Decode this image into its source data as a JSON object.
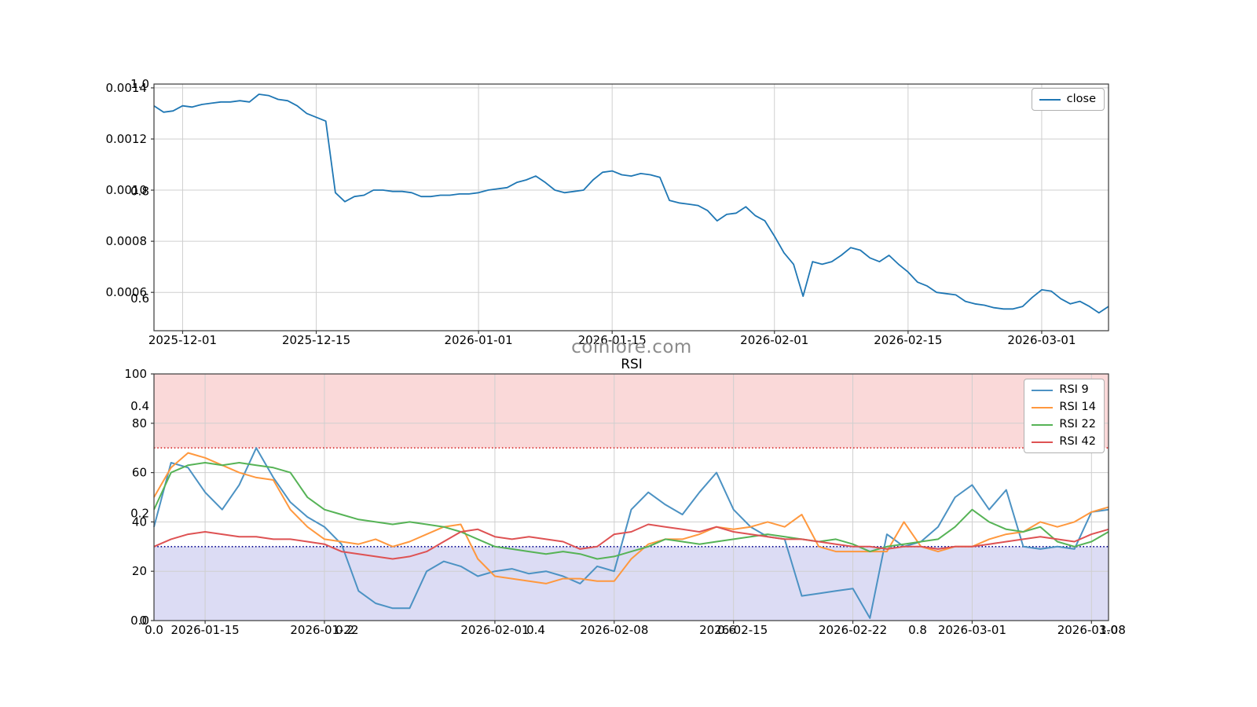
{
  "watermark": "coinlore.com",
  "phantom_axis": {
    "x_tick_labels": [
      "0.0",
      "0.2",
      "0.4",
      "0.6",
      "0.8",
      "1.0"
    ],
    "y_tick_labels": [
      "0.0",
      "0.2",
      "0.4",
      "0.6",
      "0.8",
      "1.0"
    ]
  },
  "chart_data": [
    {
      "type": "line",
      "title": "",
      "x_start": "2025-11-28",
      "x_unit": "day",
      "x_tick_labels": [
        "2025-12-01",
        "2025-12-15",
        "2026-01-01",
        "2026-01-15",
        "2026-02-01",
        "2026-02-15",
        "2026-03-01"
      ],
      "x_tick_indices": [
        3,
        17,
        34,
        48,
        65,
        79,
        93
      ],
      "ylim": [
        0.00045,
        0.001415
      ],
      "y_ticks": [
        0.0006,
        0.0008,
        0.001,
        0.0012,
        0.0014
      ],
      "y_tick_labels": [
        "0.0006",
        "0.0008",
        "0.0010",
        "0.0012",
        "0.0014"
      ],
      "grid": true,
      "legend_position": "upper right",
      "series": [
        {
          "name": "close",
          "color": "#1f77b4",
          "values": [
            0.00133,
            0.001305,
            0.00131,
            0.00133,
            0.001325,
            0.001335,
            0.00134,
            0.001345,
            0.001345,
            0.00135,
            0.001345,
            0.001375,
            0.00137,
            0.001355,
            0.00135,
            0.00133,
            0.0013,
            0.001285,
            0.00127,
            0.00099,
            0.000955,
            0.000975,
            0.00098,
            0.001,
            0.001,
            0.000995,
            0.000995,
            0.00099,
            0.000975,
            0.000975,
            0.00098,
            0.00098,
            0.000985,
            0.000985,
            0.00099,
            0.001,
            0.001005,
            0.00101,
            0.00103,
            0.00104,
            0.001055,
            0.00103,
            0.001,
            0.00099,
            0.000995,
            0.001,
            0.00104,
            0.00107,
            0.001075,
            0.00106,
            0.001055,
            0.001065,
            0.00106,
            0.00105,
            0.00096,
            0.00095,
            0.000945,
            0.00094,
            0.00092,
            0.00088,
            0.000905,
            0.00091,
            0.000935,
            0.0009,
            0.00088,
            0.00082,
            0.000755,
            0.00071,
            0.000585,
            0.00072,
            0.00071,
            0.00072,
            0.000745,
            0.000775,
            0.000765,
            0.000735,
            0.00072,
            0.000745,
            0.00071,
            0.00068,
            0.00064,
            0.000625,
            0.0006,
            0.000595,
            0.00059,
            0.000565,
            0.000555,
            0.00055,
            0.00054,
            0.000535,
            0.000535,
            0.000545,
            0.00058,
            0.00061,
            0.000605,
            0.000575,
            0.000555,
            0.000565,
            0.000545,
            0.00052,
            0.000545
          ]
        }
      ]
    },
    {
      "type": "line",
      "title": "RSI",
      "x_start": "2026-01-12",
      "x_unit": "day",
      "x_tick_labels": [
        "2026-01-15",
        "2026-01-22",
        "2026-02-01",
        "2026-02-08",
        "2026-02-15",
        "2026-02-22",
        "2026-03-01",
        "2026-03-08"
      ],
      "x_tick_indices": [
        3,
        10,
        20,
        27,
        34,
        41,
        48,
        55
      ],
      "ylim": [
        0,
        100
      ],
      "y_ticks": [
        0,
        20,
        40,
        60,
        80,
        100
      ],
      "y_tick_labels": [
        "0",
        "20",
        "40",
        "60",
        "80",
        "100"
      ],
      "grid": true,
      "legend_position": "upper right",
      "bands": [
        {
          "from": 70,
          "to": 100,
          "color": "#fad9d9",
          "meaning": "overbought"
        },
        {
          "from": 0,
          "to": 30,
          "color": "#dcdcf4",
          "meaning": "oversold"
        }
      ],
      "hlines": [
        {
          "y": 70,
          "color": "#d62728",
          "style": "dotted"
        },
        {
          "y": 30,
          "color": "#00008b",
          "style": "dotted"
        }
      ],
      "series": [
        {
          "name": "RSI 9",
          "color": "#4c92c3",
          "values": [
            38,
            64,
            62,
            52,
            45,
            55,
            70,
            58,
            48,
            42,
            38,
            31,
            12,
            7,
            5,
            5,
            20,
            24,
            22,
            18,
            20,
            21,
            19,
            20,
            18,
            15,
            22,
            20,
            45,
            52,
            47,
            43,
            52,
            60,
            45,
            38,
            34,
            33,
            10,
            11,
            12,
            13,
            1,
            35,
            30,
            32,
            38,
            50,
            55,
            45,
            53,
            30,
            29,
            30,
            29,
            44,
            45
          ]
        },
        {
          "name": "RSI 14",
          "color": "#ff983e",
          "values": [
            50,
            62,
            68,
            66,
            63,
            60,
            58,
            57,
            45,
            38,
            33,
            32,
            31,
            33,
            30,
            32,
            35,
            38,
            39,
            25,
            18,
            17,
            16,
            15,
            17,
            17,
            16,
            16,
            25,
            31,
            33,
            33,
            35,
            38,
            37,
            38,
            40,
            38,
            43,
            30,
            28,
            28,
            28,
            28,
            40,
            30,
            28,
            30,
            30,
            33,
            35,
            36,
            40,
            38,
            40,
            44,
            46
          ]
        },
        {
          "name": "RSI 22",
          "color": "#56b356",
          "values": [
            45,
            60,
            63,
            64,
            63,
            64,
            63,
            62,
            60,
            50,
            45,
            43,
            41,
            40,
            39,
            40,
            39,
            38,
            36,
            33,
            30,
            29,
            28,
            27,
            28,
            27,
            25,
            26,
            28,
            30,
            33,
            32,
            31,
            32,
            33,
            34,
            35,
            34,
            33,
            32,
            33,
            31,
            28,
            30,
            31,
            32,
            33,
            38,
            45,
            40,
            37,
            36,
            38,
            32,
            30,
            32,
            36
          ]
        },
        {
          "name": "RSI 42",
          "color": "#de5253",
          "values": [
            30,
            33,
            35,
            36,
            35,
            34,
            34,
            33,
            33,
            32,
            31,
            28,
            27,
            26,
            25,
            26,
            28,
            32,
            36,
            37,
            34,
            33,
            34,
            33,
            32,
            29,
            30,
            35,
            36,
            39,
            38,
            37,
            36,
            38,
            36,
            35,
            34,
            33,
            33,
            32,
            31,
            30,
            30,
            29,
            30,
            30,
            29,
            30,
            30,
            31,
            32,
            33,
            34,
            33,
            32,
            35,
            37
          ]
        }
      ]
    }
  ]
}
